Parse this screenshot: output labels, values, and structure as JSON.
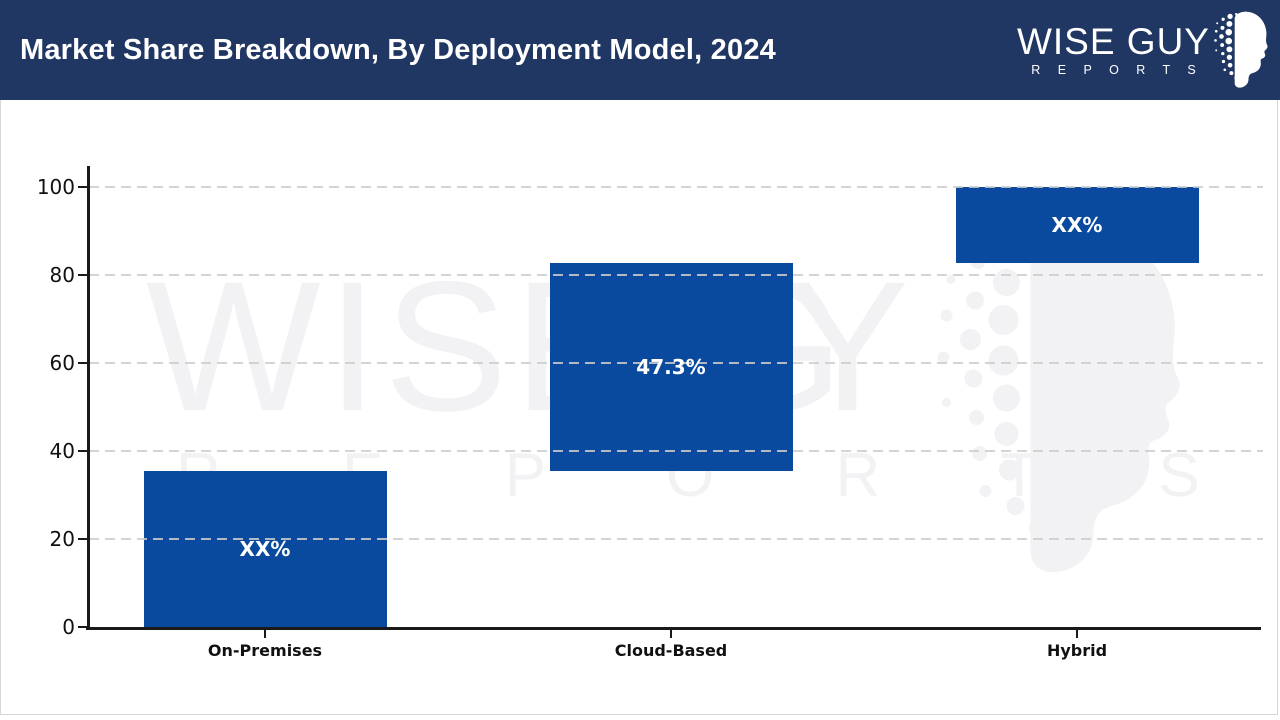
{
  "header": {
    "title": "Market Share Breakdown, By Deployment Model, 2024",
    "logo": {
      "line1": "WISE GUY",
      "line2": "R E P O R T S"
    },
    "bg_color": "#203663"
  },
  "watermark": {
    "text_left": "WISE G",
    "text_right": "Y",
    "text_reports": "R E P O R T S",
    "color": "#f2f2f4"
  },
  "chart_data": {
    "type": "bar",
    "subtype": "stacked-waterfall",
    "title": "Market Share Breakdown, By Deployment Model, 2024",
    "categories": [
      "On-Premises",
      "Cloud-Based",
      "Hybrid"
    ],
    "bars": [
      {
        "category": "On-Premises",
        "start": 0,
        "end": 35.4,
        "label": "XX%"
      },
      {
        "category": "Cloud-Based",
        "start": 35.4,
        "end": 82.7,
        "label": "47.3%"
      },
      {
        "category": "Hybrid",
        "start": 82.7,
        "end": 100,
        "label": "XX%"
      }
    ],
    "ylim": [
      0,
      100
    ],
    "yticks": [
      0,
      20,
      40,
      60,
      80,
      100
    ],
    "grid": "horizontal-dashed",
    "grid_color": "#d9d9d9",
    "bar_color": "#0a4a9e",
    "bar_label_color": "#ffffff",
    "legend": "none",
    "xlabel": "",
    "ylabel": ""
  }
}
